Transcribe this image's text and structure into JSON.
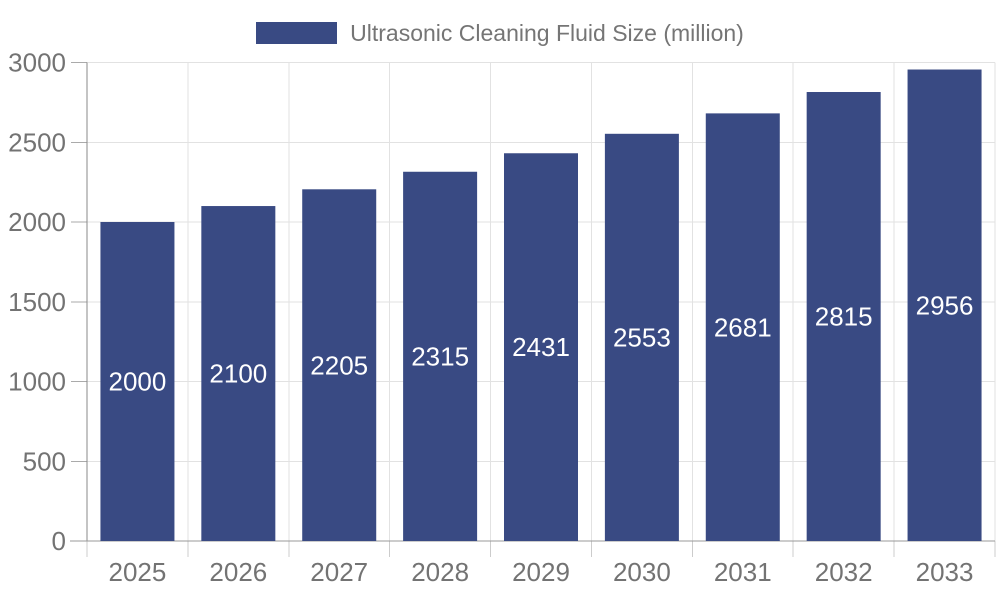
{
  "legend": {
    "label": "Ultrasonic Cleaning Fluid Size (million)",
    "swatch_color": "#394A83"
  },
  "colors": {
    "bar": "#394A83",
    "bar_label": "#FFFFFF",
    "grid": "#E2E2E2",
    "axis_line": "#999999",
    "y_axis_line": "#8A8A8A",
    "tick": "#AAAAAA",
    "boundary_tick": "#CCCCCC",
    "tick_label": "#737373",
    "legend_label": "#757575",
    "background": "#FFFFFF"
  },
  "chart_data": {
    "type": "bar",
    "title": "Ultrasonic Cleaning Fluid Size (million)",
    "series_name": "Ultrasonic Cleaning Fluid Size (million)",
    "categories": [
      "2025",
      "2026",
      "2027",
      "2028",
      "2029",
      "2030",
      "2031",
      "2032",
      "2033"
    ],
    "values": [
      2000,
      2100,
      2205,
      2315,
      2431,
      2553,
      2681,
      2815,
      2956
    ],
    "bar_value_labels": [
      "2000",
      "2100",
      "2205",
      "2315",
      "2431",
      "2553",
      "2681",
      "2815",
      "2956"
    ],
    "xlabel": "",
    "ylabel": "",
    "ylim": [
      0,
      3000
    ],
    "yticks": [
      0,
      500,
      1000,
      1500,
      2000,
      2500,
      3000
    ],
    "grid": true,
    "legend_position": "top",
    "value_label_position": "inside-center"
  }
}
